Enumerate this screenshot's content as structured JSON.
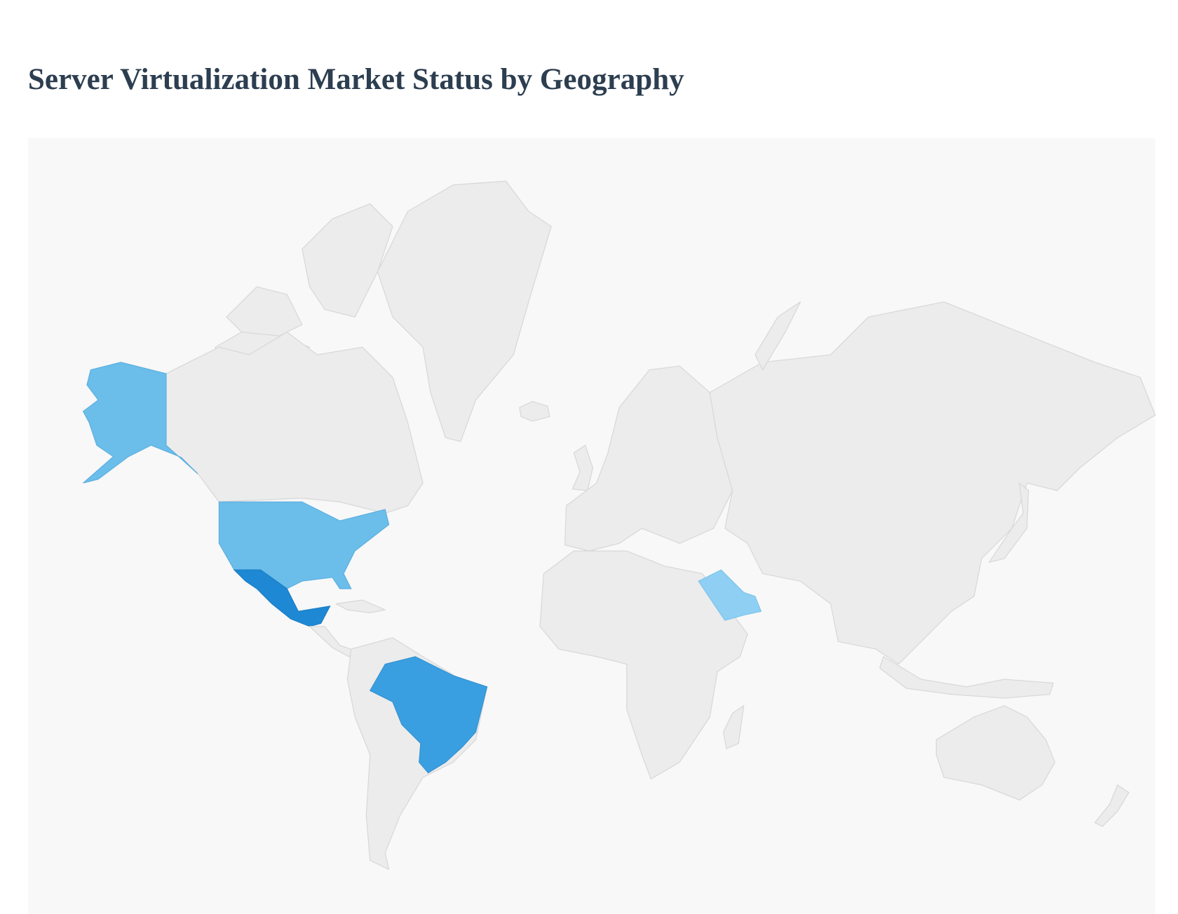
{
  "header": {
    "title": "Server Virtualization Market Status by Geography"
  }
}
